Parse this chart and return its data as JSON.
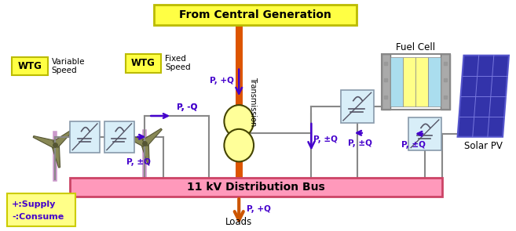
{
  "title": "From Central Generation",
  "bus_label": "11 kV Distribution Bus",
  "transmission_label": "Transmission",
  "loads_label": "Loads",
  "wtg1_label": "WTG",
  "wtg1_sublabel": "Variable\nSpeed",
  "wtg2_label": "WTG",
  "wtg2_sublabel": "Fixed\nSpeed",
  "fuelcell_label": "Fuel Cell",
  "solarpv_label": "Solar PV",
  "bg_color": "#ffffff",
  "yellow_box_color": "#ffff44",
  "yellow_box_edge": "#bbbb00",
  "bus_color": "#ff99bb",
  "bus_edge": "#cc4466",
  "transmission_color": "#dd5500",
  "transformer_color": "#ffff99",
  "transformer_edge": "#444400",
  "inverter_fill": "#d8eef8",
  "inverter_edge": "#8899aa",
  "arrow_color": "#4400cc",
  "loads_arrow_color": "#cc5500",
  "pole_color": "#cc99cc",
  "blade_color": "#888855",
  "solarpanel_dark": "#3333aa",
  "solarpanel_light": "#6655cc",
  "legend_fill": "#ffff88",
  "legend_edge": "#cccc00",
  "fc_gray": "#aaaaaa",
  "fc_blue": "#aaddee",
  "fc_yellow": "#ffff88",
  "wire_color": "#888888"
}
